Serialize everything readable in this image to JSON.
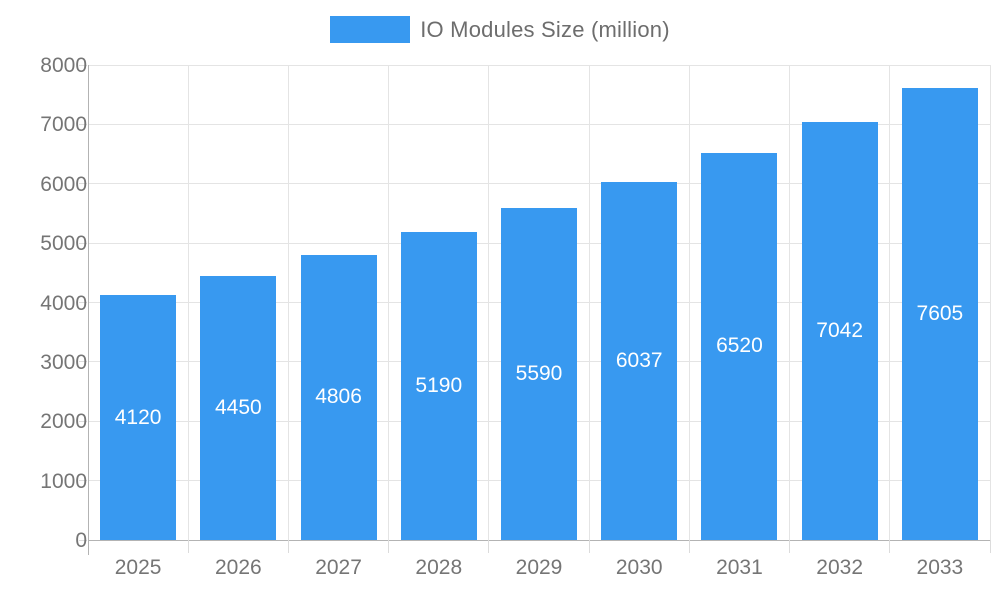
{
  "chart_data": {
    "type": "bar",
    "title": "",
    "legend": {
      "label": "IO Modules Size (million)",
      "position": "top"
    },
    "categories": [
      "2025",
      "2026",
      "2027",
      "2028",
      "2029",
      "2030",
      "2031",
      "2032",
      "2033"
    ],
    "series": [
      {
        "name": "IO Modules Size (million)",
        "values": [
          4120,
          4450,
          4806,
          5190,
          5590,
          6037,
          6520,
          7042,
          7605
        ]
      }
    ],
    "value_labels_shown": true,
    "xlabel": "",
    "ylabel": "",
    "ylim": [
      0,
      8000
    ],
    "yticks": [
      0,
      1000,
      2000,
      3000,
      4000,
      5000,
      6000,
      7000,
      8000
    ],
    "grid": true,
    "colors": {
      "bar": "#3899f0",
      "value_label": "#ffffff",
      "axis_label": "#757575",
      "legend_label": "#6d6d6d",
      "gridline": "#e4e4e4",
      "tick": "#dcdcdc",
      "axis_line": "#b3b3b3",
      "background": "#ffffff"
    }
  }
}
